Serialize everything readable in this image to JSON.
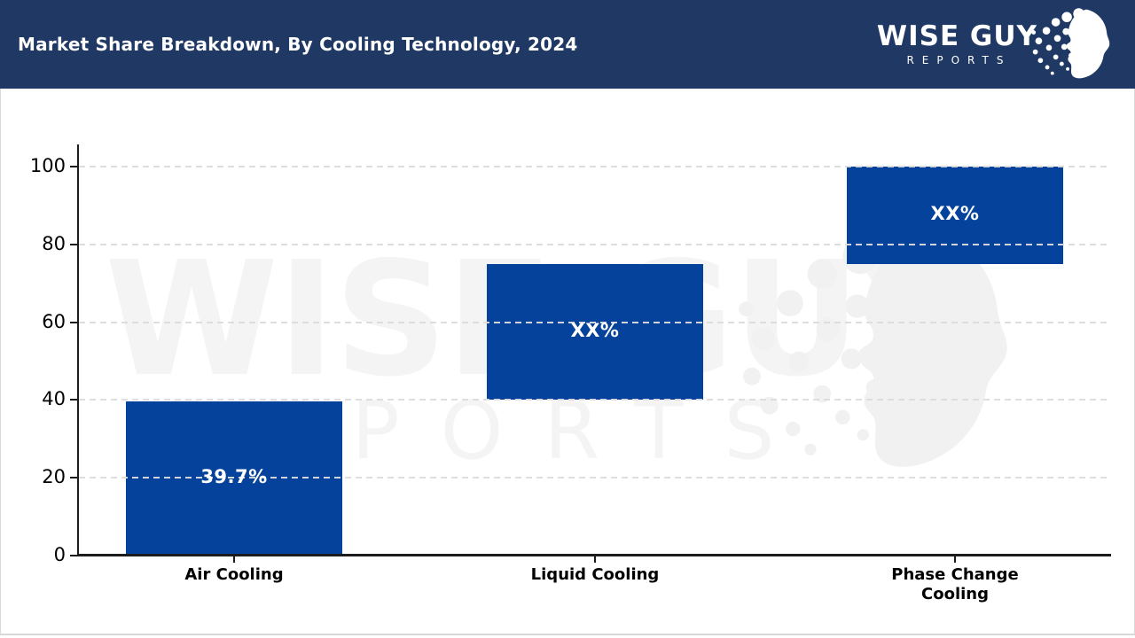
{
  "header": {
    "title": "Market Share Breakdown, By Cooling Technology, 2024",
    "logo": {
      "line1": "WISE GUY",
      "line2": "REPORTS"
    }
  },
  "watermark": {
    "line1": "WISE GUY",
    "line2": "REPORTS"
  },
  "colors": {
    "header_bg": "#1F3864",
    "bar": "#05429B",
    "bar_label": "#FFFFFF",
    "gridline": "#DCDCDC",
    "axis": "#1C1C1C",
    "watermark": "#F4F4F4"
  },
  "chart_data": {
    "type": "bar",
    "variant": "floating-waterfall",
    "title": "Market Share Breakdown, By Cooling Technology, 2024",
    "categories": [
      "Air Cooling",
      "Liquid Cooling",
      "Phase Change Cooling"
    ],
    "bars": [
      {
        "category": "Air Cooling",
        "start": 0,
        "end": 39.7,
        "label": "39.7%"
      },
      {
        "category": "Liquid Cooling",
        "start": 40,
        "end": 75,
        "label": "XX%"
      },
      {
        "category": "Phase Change Cooling",
        "start": 75,
        "end": 100,
        "label": "XX%"
      }
    ],
    "xlabel": "",
    "ylabel": "",
    "ylim": [
      0,
      105
    ],
    "yticks": [
      0,
      20,
      40,
      60,
      80,
      100
    ],
    "grid": "horizontal-dashed",
    "legend": "none",
    "bar_color": "#05429B",
    "bar_label_color": "#FFFFFF"
  }
}
